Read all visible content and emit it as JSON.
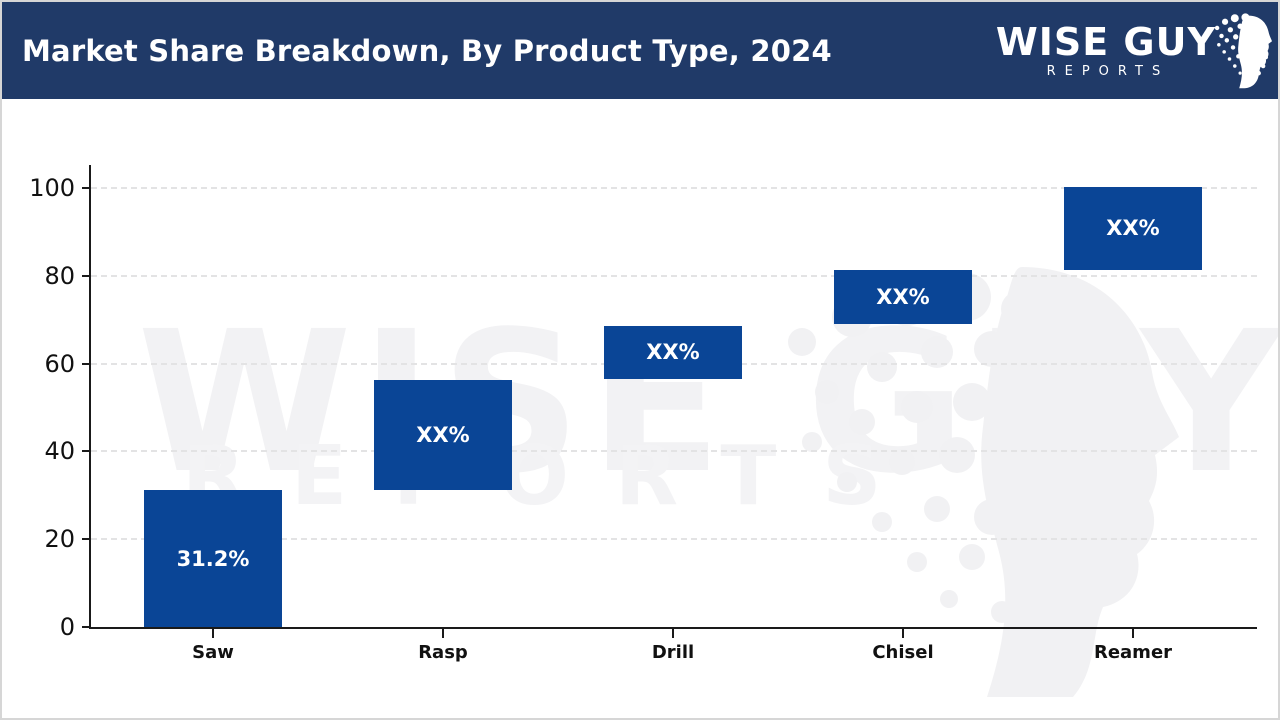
{
  "header": {
    "title": "Market Share Breakdown, By Product Type, 2024",
    "logo": {
      "line1": "WISE GUY",
      "line2": "REPORTS"
    }
  },
  "watermark": {
    "line1": "WISE GUY",
    "line2": "REPORTS"
  },
  "colors": {
    "header_bg": "#203a68",
    "bar": "#0a4596",
    "bar_label": "#ffffff",
    "gridline": "#e3e3e4",
    "axis": "#1a1a1a",
    "watermark": "#f2f2f4",
    "page_border": "#d6d6d6"
  },
  "chart_data": {
    "type": "bar",
    "subtype": "waterfall",
    "title": "Market Share Breakdown, By Product Type, 2024",
    "categories": [
      "Saw",
      "Rasp",
      "Drill",
      "Chisel",
      "Reamer"
    ],
    "segments": [
      {
        "category": "Saw",
        "start": 0,
        "end": 31.2,
        "label": "31.2%"
      },
      {
        "category": "Rasp",
        "start": 31.2,
        "end": 56.3,
        "label": "XX%"
      },
      {
        "category": "Drill",
        "start": 56.5,
        "end": 68.6,
        "label": "XX%"
      },
      {
        "category": "Chisel",
        "start": 69.1,
        "end": 81.3,
        "label": "XX%"
      },
      {
        "category": "Reamer",
        "start": 81.4,
        "end": 100.2,
        "label": "XX%"
      }
    ],
    "y_ticks": [
      0,
      20,
      40,
      60,
      80,
      100
    ],
    "ylim": [
      0,
      105
    ],
    "xlabel": "",
    "ylabel": "",
    "grid": "horizontal-dashed",
    "legend": "none"
  }
}
